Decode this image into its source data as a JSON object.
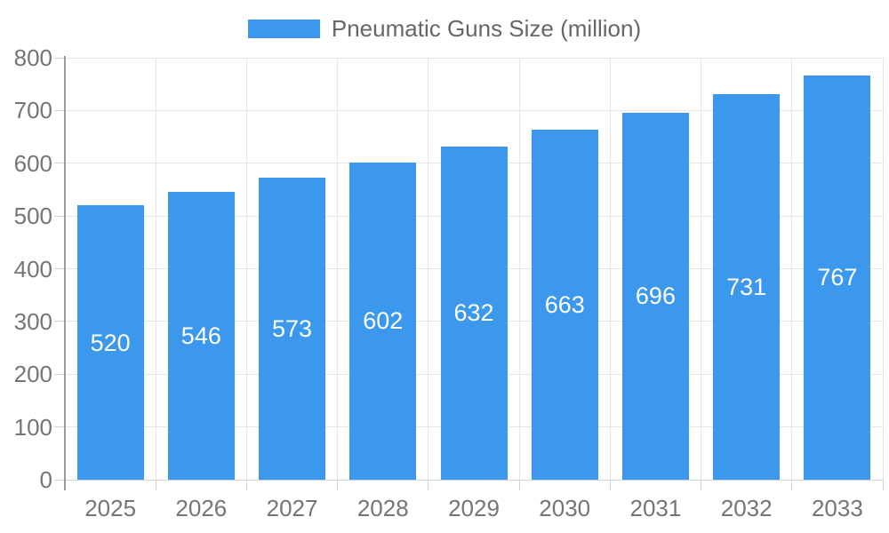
{
  "legend": {
    "label": "Pneumatic Guns Size (million)"
  },
  "chart_data": {
    "type": "bar",
    "title": "Pneumatic Guns Size (million)",
    "categories": [
      "2025",
      "2026",
      "2027",
      "2028",
      "2029",
      "2030",
      "2031",
      "2032",
      "2033"
    ],
    "values": [
      520,
      546,
      573,
      602,
      632,
      663,
      696,
      731,
      767
    ],
    "xlabel": "",
    "ylabel": "",
    "ylim": [
      0,
      800
    ],
    "ytick_step": 100,
    "yticks": [
      0,
      100,
      200,
      300,
      400,
      500,
      600,
      700,
      800
    ],
    "grid": true,
    "legend_position": "top",
    "value_label_position": "inside-middle"
  },
  "colors": {
    "bar": "#3B98EC",
    "grid": "#E6E6E6",
    "baseline": "#D2D2D2",
    "tick": "#D2D2D2",
    "axis_line": "#9B9B9B",
    "axis_text": "#757575",
    "legend_text": "#666666",
    "value_text": "#FFFFFF",
    "background": "#FFFFFF"
  }
}
